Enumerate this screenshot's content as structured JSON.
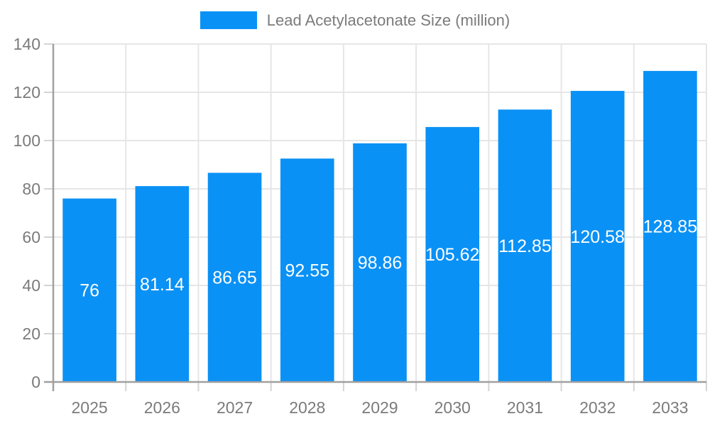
{
  "page": {
    "background": "#ffffff"
  },
  "legend": {
    "label": "Lead Acetylacetonate Size (million)"
  },
  "chart_data": {
    "type": "bar",
    "title": "Lead Acetylacetonate Size (million)",
    "categories": [
      "2025",
      "2026",
      "2027",
      "2028",
      "2029",
      "2030",
      "2031",
      "2032",
      "2033"
    ],
    "series": [
      {
        "name": "Lead Acetylacetonate Size (million)",
        "values": [
          76,
          81.14,
          86.65,
          92.55,
          98.86,
          105.62,
          112.85,
          120.58,
          128.85
        ],
        "data_labels": [
          "76",
          "81.14",
          "86.65",
          "92.55",
          "98.86",
          "105.62",
          "112.85",
          "120.58",
          "128.85"
        ]
      }
    ],
    "xlabel": "",
    "ylabel": "",
    "ylim": [
      0,
      140
    ],
    "ytick_step": 20,
    "ytick_labels": [
      "0",
      "20",
      "40",
      "60",
      "80",
      "100",
      "120",
      "140"
    ],
    "grid": true,
    "legend_position": "top-center",
    "colors": {
      "bar": "#0a91f5",
      "grid": "#e6e6e6",
      "axis": "#a0a0a0",
      "tick": "#d4d4d4",
      "text": "#7b7b7b",
      "data_label": "#ffffff"
    }
  }
}
